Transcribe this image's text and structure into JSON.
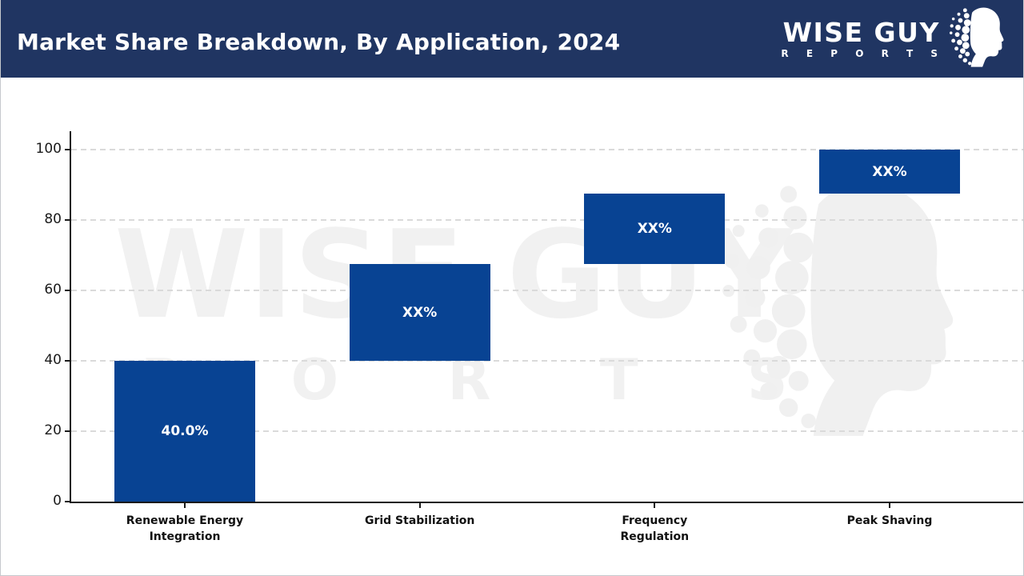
{
  "header": {
    "title": "Market Share Breakdown, By Application, 2024",
    "logo_line1": "WISE GUY",
    "logo_line2": "R E P O R T S"
  },
  "watermark": {
    "line1": "WISE GUY",
    "line2": "P O R T S"
  },
  "colors": {
    "header_bg": "#203562",
    "bar": "#084393",
    "gridline": "#dadada",
    "axis": "#1a1a1a",
    "watermark": "#f1f1f1"
  },
  "chart_data": {
    "type": "bar",
    "subtype": "floating-waterfall",
    "title": "Market Share Breakdown, By Application, 2024",
    "categories": [
      "Renewable Energy\nIntegration",
      "Grid Stabilization",
      "Frequency\nRegulation",
      "Peak Shaving"
    ],
    "series": [
      {
        "name": "Market Share",
        "segments": [
          {
            "from": 0,
            "to": 40
          },
          {
            "from": 40,
            "to": 67.5
          },
          {
            "from": 67.5,
            "to": 87.5
          },
          {
            "from": 87.5,
            "to": 100
          }
        ],
        "values": [
          40,
          27.5,
          20,
          12.5
        ],
        "labels": [
          "40.0%",
          "XX%",
          "XX%",
          "XX%"
        ]
      }
    ],
    "xlabel": "",
    "ylabel": "",
    "ylim": [
      0,
      100
    ],
    "yticks": [
      0,
      20,
      40,
      60,
      80,
      100
    ],
    "grid": "horizontal-dashed",
    "legend": false
  }
}
